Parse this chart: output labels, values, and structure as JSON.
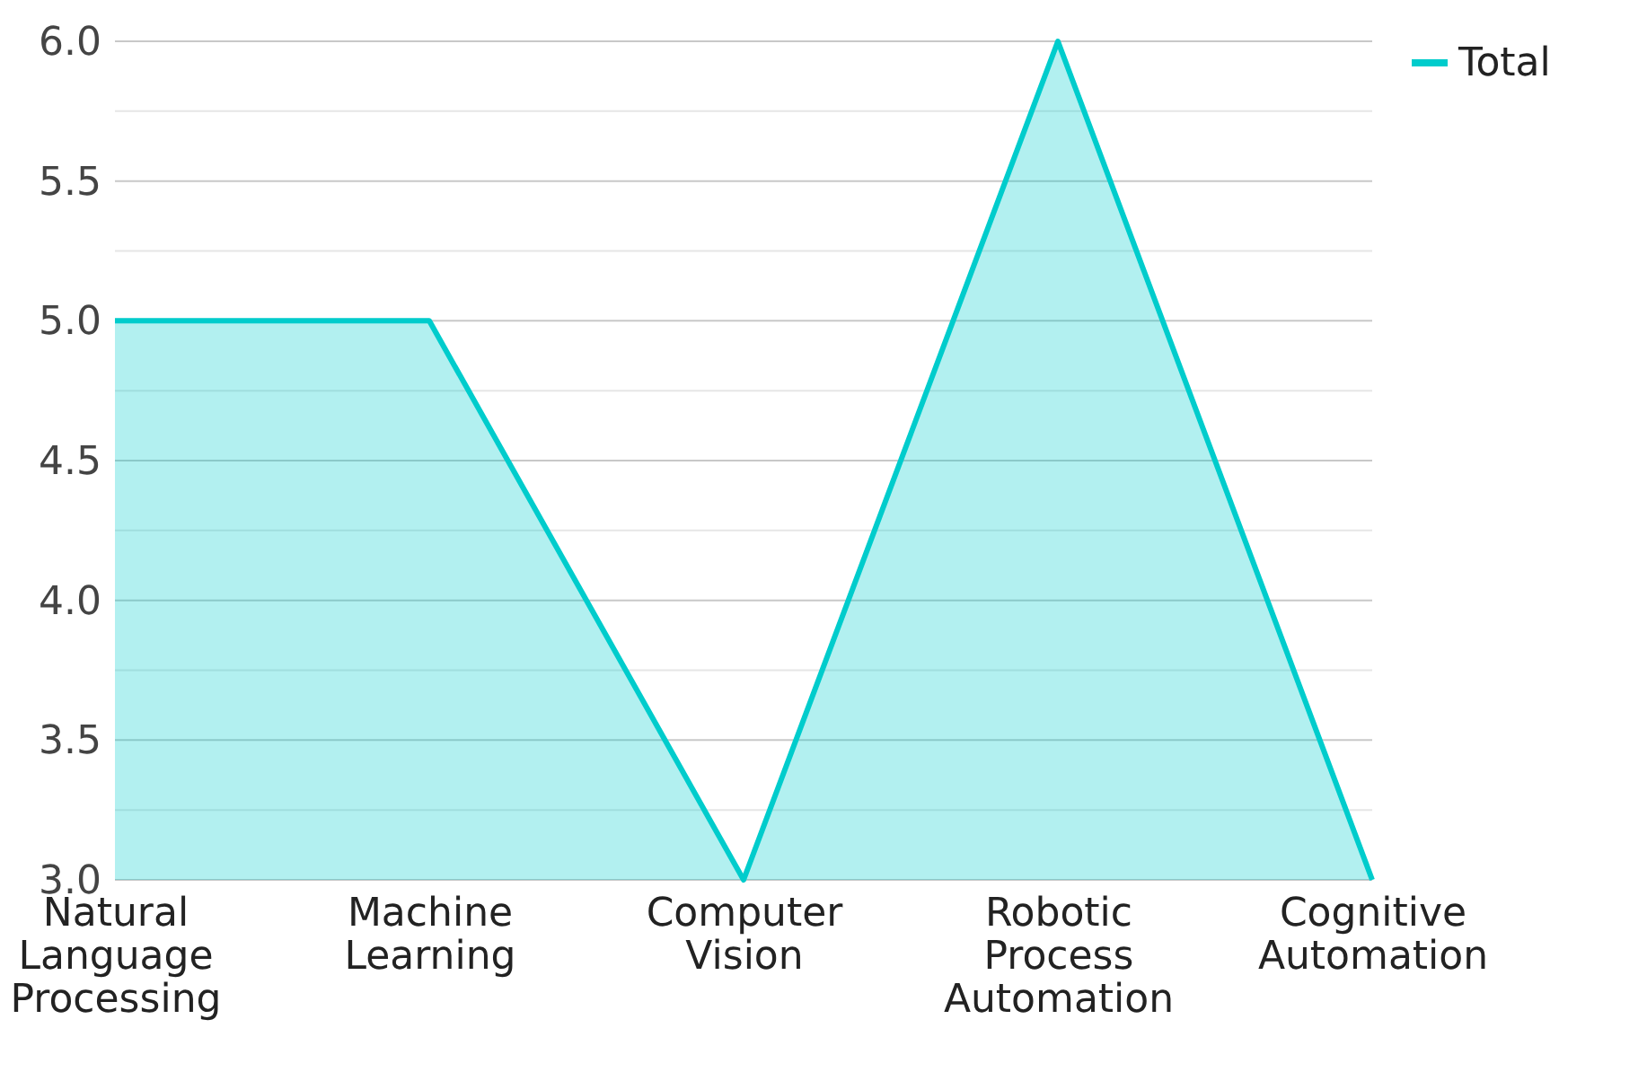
{
  "chart_data": {
    "type": "area",
    "categories": [
      "Natural Language Processing",
      "Machine Learning",
      "Computer Vision",
      "Robotic Process Automation",
      "Cognitive Automation"
    ],
    "series": [
      {
        "name": "Total",
        "color": "#00cccc",
        "values": [
          5,
          5,
          3,
          6,
          3
        ]
      }
    ],
    "ylim": [
      3.0,
      6.0
    ],
    "yticks": [
      {
        "value": 3.0,
        "label": "3.0"
      },
      {
        "value": 3.25,
        "label": null
      },
      {
        "value": 3.5,
        "label": "3.5"
      },
      {
        "value": 3.75,
        "label": null
      },
      {
        "value": 4.0,
        "label": "4.0"
      },
      {
        "value": 4.25,
        "label": null
      },
      {
        "value": 4.5,
        "label": "4.5"
      },
      {
        "value": 4.75,
        "label": null
      },
      {
        "value": 5.0,
        "label": "5.0"
      },
      {
        "value": 5.25,
        "label": null
      },
      {
        "value": 5.5,
        "label": "5.5"
      },
      {
        "value": 5.75,
        "label": null
      },
      {
        "value": 6.0,
        "label": "6.0"
      }
    ],
    "grid": "y",
    "legend": "top right"
  }
}
